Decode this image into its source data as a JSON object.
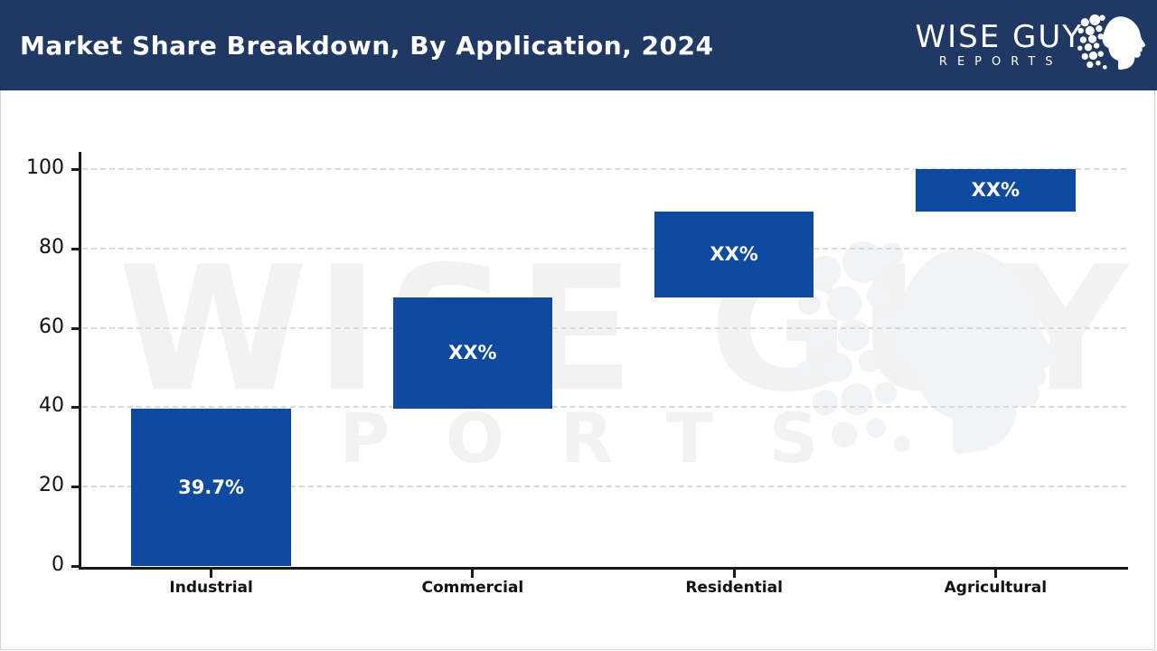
{
  "header": {
    "title": "Market Share Breakdown, By Application, 2024",
    "background_color": "#1f3864",
    "brand": {
      "line1": "WISE GUY",
      "line2": "REPORTS",
      "icon": "head-profile-dots"
    }
  },
  "watermark": {
    "line1": "WISE GUY",
    "line2": "REPORTS",
    "icon": "head-profile-dots"
  },
  "chart_data": {
    "type": "bar",
    "subtype": "waterfall",
    "title": "Market Share Breakdown, By Application, 2024",
    "categories": [
      "Industrial",
      "Commercial",
      "Residential",
      "Agricultural"
    ],
    "segments": [
      {
        "category": "Industrial",
        "start": 0,
        "end": 39.7,
        "label": "39.7%"
      },
      {
        "category": "Commercial",
        "start": 39.7,
        "end": 67.7,
        "label": "XX%"
      },
      {
        "category": "Residential",
        "start": 67.7,
        "end": 89.4,
        "label": "XX%"
      },
      {
        "category": "Agricultural",
        "start": 89.4,
        "end": 100,
        "label": "XX%"
      }
    ],
    "ylim": [
      0,
      100
    ],
    "yticks": [
      0,
      20,
      40,
      60,
      80,
      100
    ],
    "grid": "horizontal-dashed",
    "legend": "none",
    "bar_color": "#0d4aa0",
    "bar_label_color": "#ffffff",
    "axis_color": "#1a1a1a",
    "gridline_color": "#d9d9d9"
  }
}
